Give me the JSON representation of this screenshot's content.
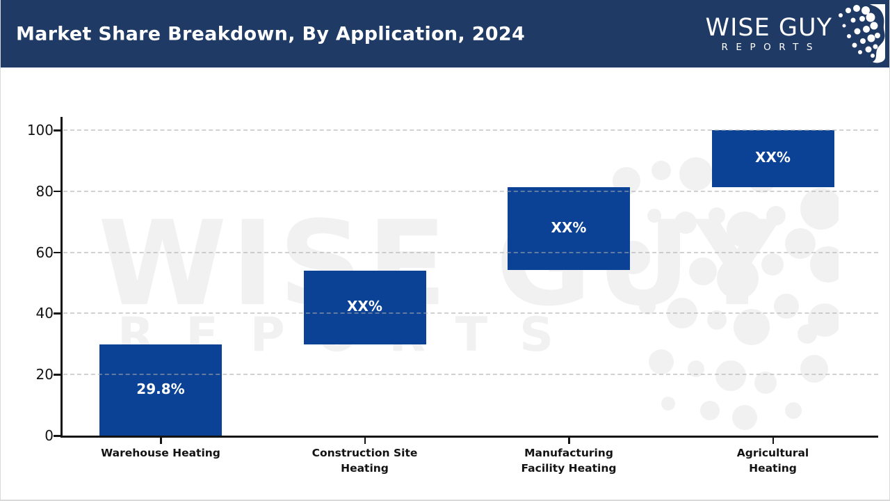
{
  "header": {
    "title": "Market Share Breakdown, By Application, 2024",
    "logo": {
      "wordmark": "WISE GUY",
      "subtitle": "REPORTS"
    }
  },
  "watermark": {
    "wordmark": "WISE GUY",
    "subtitle": "REPORTS"
  },
  "chart_data": {
    "type": "bar",
    "subtype": "waterfall",
    "title": "Market Share Breakdown, By Application, 2024",
    "categories": [
      "Warehouse Heating",
      "Construction Site Heating",
      "Manufacturing Facility Heating",
      "Agricultural Heating"
    ],
    "categories_lines": [
      [
        "Warehouse Heating"
      ],
      [
        "Construction Site",
        "Heating"
      ],
      [
        "Manufacturing",
        "Facility Heating"
      ],
      [
        "Agricultural",
        "Heating"
      ]
    ],
    "segments": [
      {
        "category": "Warehouse Heating",
        "start": 0,
        "end": 29.8,
        "label": "29.8%"
      },
      {
        "category": "Construction Site Heating",
        "start": 29.8,
        "end": 54.1,
        "label": "XX%"
      },
      {
        "category": "Manufacturing Facility Heating",
        "start": 54.1,
        "end": 81.4,
        "label": "XX%"
      },
      {
        "category": "Agricultural Heating",
        "start": 81.4,
        "end": 100.0,
        "label": "XX%"
      }
    ],
    "ylim": [
      0,
      100
    ],
    "yticks": [
      0,
      20,
      40,
      60,
      80,
      100
    ],
    "grid": {
      "horizontal": true,
      "style": "dashed"
    },
    "legend": "none",
    "colors": {
      "bar": "#0b4295",
      "bar_label": "#ffffff",
      "axis": "#131313",
      "gridline": "#d1d1d1",
      "header_bg": "#203a66",
      "watermark": "#f1f1f1"
    }
  }
}
